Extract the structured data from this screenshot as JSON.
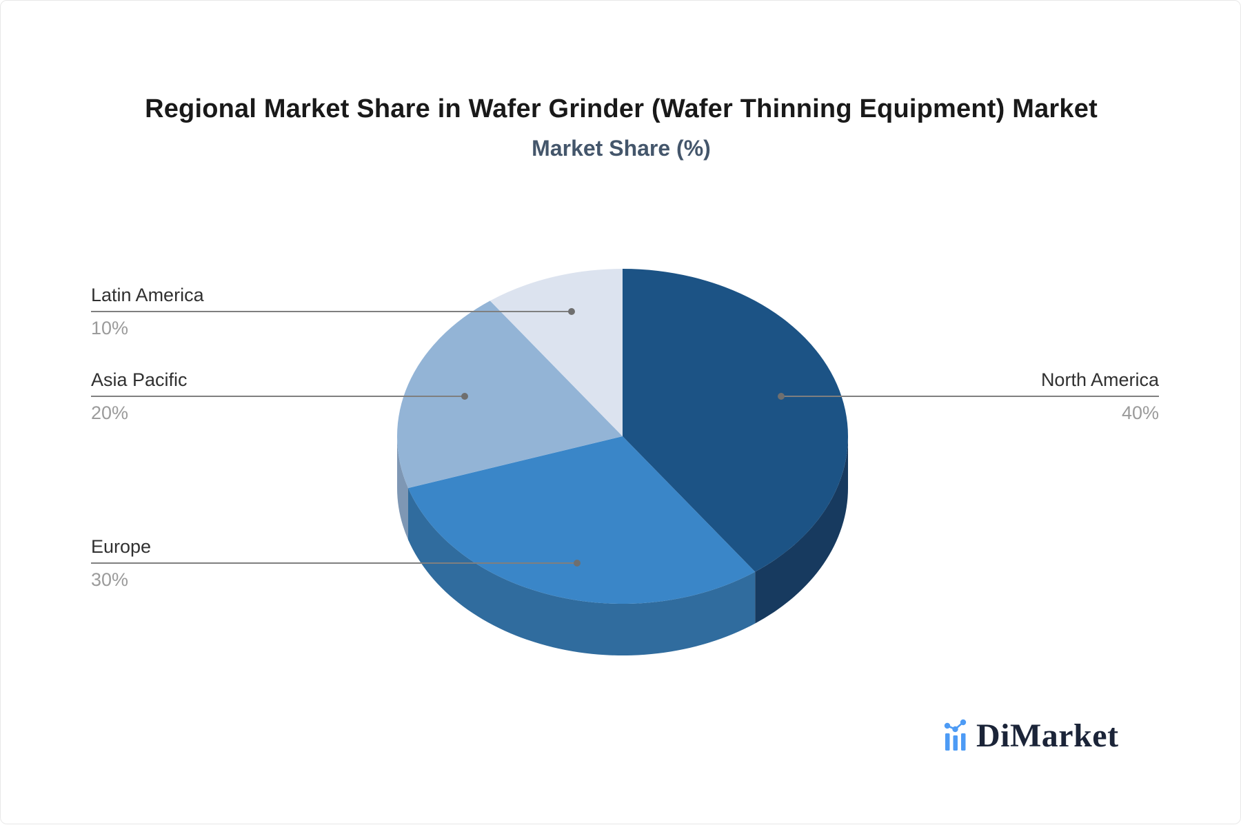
{
  "chart_data": {
    "type": "pie",
    "style": "3d",
    "title": "Regional Market Share in Wafer Grinder (Wafer Thinning Equipment) Market",
    "subtitle": "Market Share (%)",
    "unit": "%",
    "start_angle_deg": 0,
    "legend_position": "callout-labels",
    "slices": [
      {
        "id": "north-america",
        "label": "North America",
        "value": 40,
        "pct_label": "40%",
        "color": "#1C5385",
        "side_color": "#173A5F"
      },
      {
        "id": "europe",
        "label": "Europe",
        "value": 30,
        "pct_label": "30%",
        "color": "#3A86C8",
        "side_color": "#306C9E"
      },
      {
        "id": "asia-pacific",
        "label": "Asia Pacific",
        "value": 20,
        "pct_label": "20%",
        "color": "#93B4D6",
        "side_color": "#7E97B4"
      },
      {
        "id": "latin-america",
        "label": "Latin America",
        "value": 10,
        "pct_label": "10%",
        "color": "#DCE3EF",
        "side_color": "#C6D0E0"
      }
    ],
    "callout_line_color": "#7f7f7f",
    "label_color": "#303030",
    "pct_color": "#9b9b9b",
    "title_color": "#191919",
    "subtitle_color": "#44566B"
  },
  "brand": {
    "name": "DiMarket",
    "icon": "bar-chart-trend-icon",
    "icon_color": "#4D9BF5",
    "text_color": "#1B2438"
  }
}
